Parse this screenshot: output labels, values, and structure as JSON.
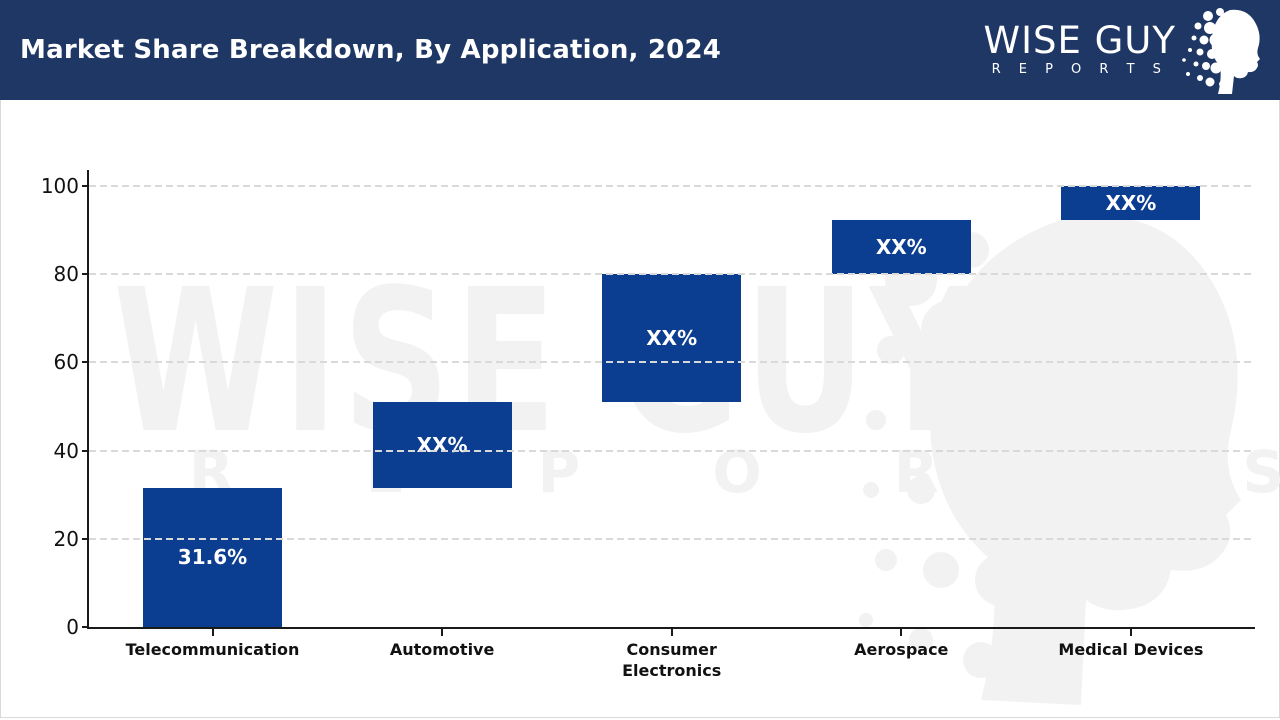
{
  "header": {
    "title": "Market Share Breakdown, By Application, 2024",
    "logo": {
      "line1": "WISE GUY",
      "line2": "R E P O R T S"
    }
  },
  "watermark": {
    "line1": "WISE GUY",
    "line2": "R E P O R T S"
  },
  "colors": {
    "header_bg": "#1F3765",
    "bar_blue": "#0B3D91",
    "bar_label_text": "#FFFFFF",
    "gridline": "#D9D9D9",
    "axis": "#1A1A1A",
    "text": "#111111",
    "watermark": "#F2F2F2",
    "border": "#D9D9D9"
  },
  "chart_data": {
    "type": "bar",
    "subtype": "waterfall",
    "title": "Market Share Breakdown, By Application, 2024",
    "categories": [
      "Telecommunication",
      "Automotive",
      "Consumer Electronics",
      "Aerospace",
      "Medical Devices"
    ],
    "segments": [
      {
        "category": "Telecommunication",
        "start": 0,
        "end": 31.6,
        "label": "31.6%"
      },
      {
        "category": "Automotive",
        "start": 31.6,
        "end": 51,
        "label": "XX%"
      },
      {
        "category": "Consumer Electronics",
        "start": 51,
        "end": 80,
        "label": "XX%"
      },
      {
        "category": "Aerospace",
        "start": 80,
        "end": 92.3,
        "label": "XX%"
      },
      {
        "category": "Medical Devices",
        "start": 92.3,
        "end": 100,
        "label": "XX%"
      }
    ],
    "y_ticks": [
      0,
      20,
      40,
      60,
      80,
      100
    ],
    "ylim": [
      0,
      100
    ],
    "xlabel": "",
    "ylabel": "",
    "grid": "horizontal-dashed",
    "legend": "none",
    "bar_color": "#0B3D91"
  }
}
